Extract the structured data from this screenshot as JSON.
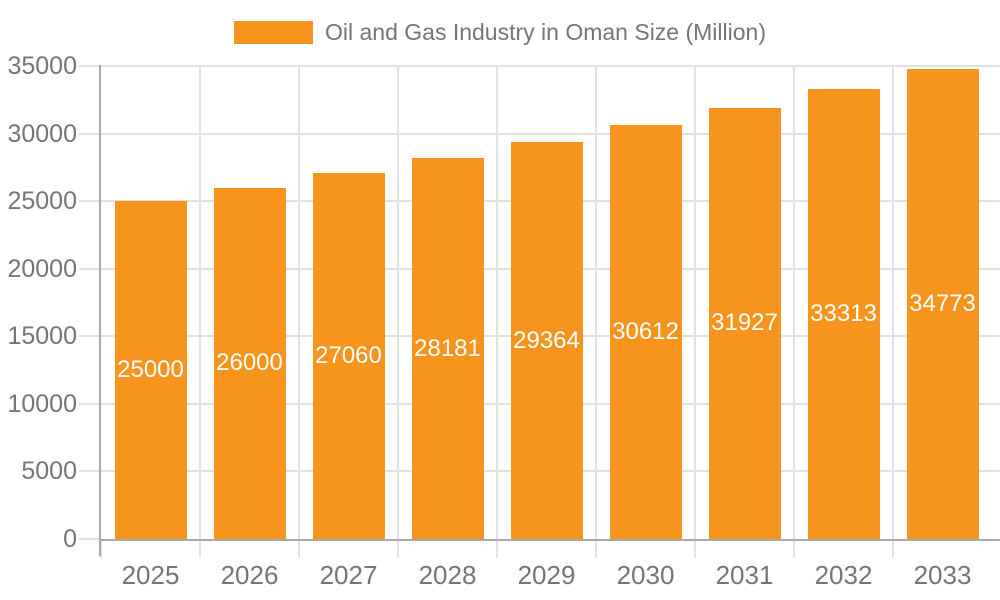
{
  "legend": {
    "label": "Oil and Gas Industry in Oman Size (Million)"
  },
  "colors": {
    "bar": "#F7941E",
    "bar_label": "#FFFFFF",
    "axis": "#A9A9A9",
    "grid": "#E2E2E2",
    "text": "#757575",
    "background": "#FFFFFF"
  },
  "chart_data": {
    "type": "bar",
    "title": "Oil and Gas Industry in Oman Size (Million)",
    "series_name": "Oil and Gas Industry in Oman Size (Million)",
    "categories": [
      "2025",
      "2026",
      "2027",
      "2028",
      "2029",
      "2030",
      "2031",
      "2032",
      "2033"
    ],
    "values": [
      25000,
      26000,
      27060,
      28181,
      29364,
      30612,
      31927,
      33313,
      34773
    ],
    "data_labels_visible": true,
    "data_label_position": "inside-center",
    "xlabel": "",
    "ylabel": "",
    "ylim": [
      0,
      35000
    ],
    "ytick_step": 5000,
    "yticks": [
      0,
      5000,
      10000,
      15000,
      20000,
      25000,
      30000,
      35000
    ],
    "grid": true,
    "legend_position": "top-center",
    "bar_color": "#F7941E"
  }
}
